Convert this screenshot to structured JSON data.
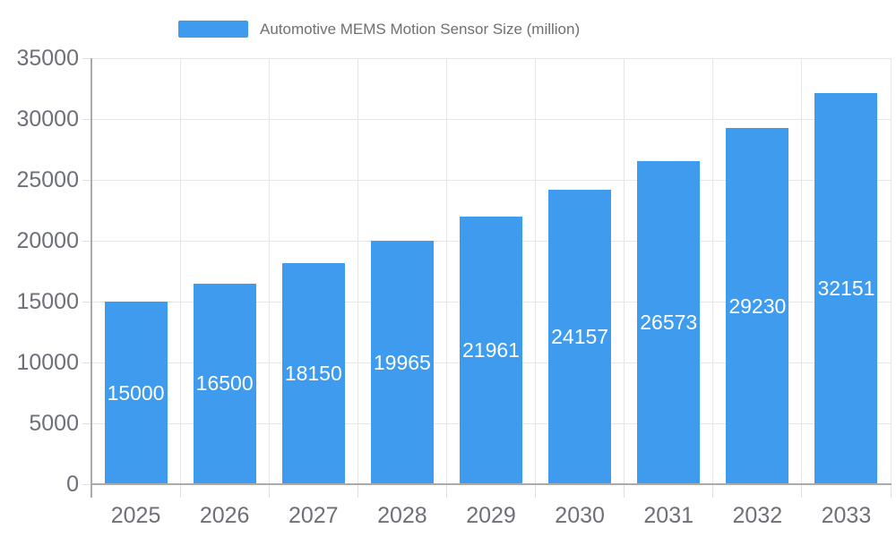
{
  "chart_data": {
    "type": "bar",
    "title": "Automotive MEMS Motion Sensor Size (million)",
    "series_name": "Automotive MEMS Motion Sensor Size (million)",
    "categories": [
      "2025",
      "2026",
      "2027",
      "2028",
      "2029",
      "2030",
      "2031",
      "2032",
      "2033"
    ],
    "values": [
      15000,
      16500,
      18150,
      19965,
      21961,
      24157,
      26573,
      29230,
      32151
    ],
    "value_labels": [
      "15000",
      "16500",
      "18150",
      "19965",
      "21961",
      "24157",
      "26573",
      "29230",
      "32151"
    ],
    "xlabel": "",
    "ylabel": "",
    "ylim": [
      0,
      35000
    ],
    "ytick_interval": 5000,
    "ytick_labels": [
      "0",
      "5000",
      "10000",
      "15000",
      "20000",
      "25000",
      "30000",
      "35000"
    ],
    "grid": true,
    "legend_position": "top",
    "bar_label_position": "inside-center"
  },
  "colors": {
    "bar": "#3E9BEE",
    "bar_label": "#FFFFFF",
    "axis_line": "#AAAAAA",
    "grid_line": "#E6E6E6",
    "tick_line": "#E0E0E0",
    "axis_label": "#6E7079",
    "legend_text": "#6F6F6F",
    "background": "#FFFFFF"
  }
}
